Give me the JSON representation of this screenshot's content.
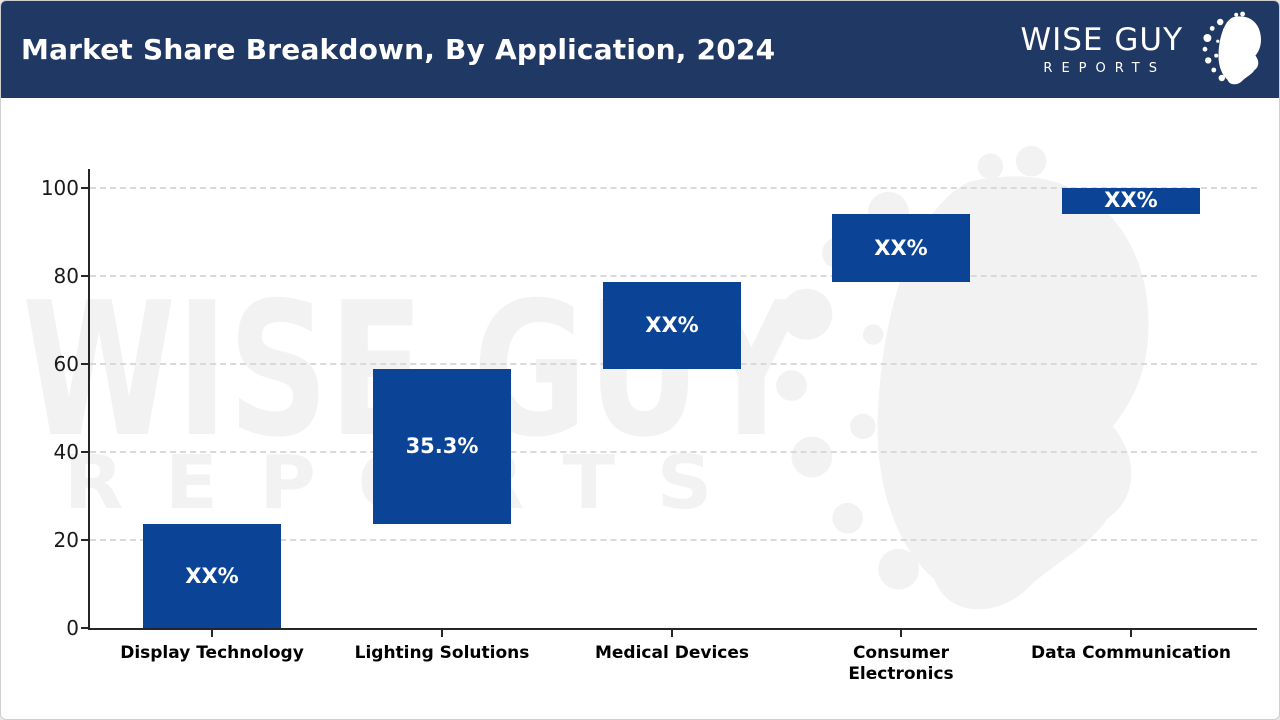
{
  "header": {
    "title": "Market Share Breakdown, By Application, 2024",
    "logo": {
      "name": "WISE GUY",
      "subtitle": "REPORTS"
    }
  },
  "watermark": {
    "line1": "WISE GUY",
    "line2": "REPORTS"
  },
  "chart_data": {
    "type": "bar",
    "subtype": "waterfall",
    "title": "Market Share Breakdown, By Application, 2024",
    "categories": [
      "Display Technology",
      "Lighting Solutions",
      "Medical Devices",
      "Consumer Electronics",
      "Data Communication"
    ],
    "category_label_lines": [
      [
        "Display Technology"
      ],
      [
        "Lighting Solutions"
      ],
      [
        "Medical Devices"
      ],
      [
        "Consumer",
        "Electronics"
      ],
      [
        "Data Communication"
      ]
    ],
    "bars": [
      {
        "category": "Display Technology",
        "start": 0,
        "end": 23.5,
        "label": "XX%"
      },
      {
        "category": "Lighting Solutions",
        "start": 23.5,
        "end": 58.8,
        "label": "35.3%"
      },
      {
        "category": "Medical Devices",
        "start": 58.8,
        "end": 78.5,
        "label": "XX%"
      },
      {
        "category": "Consumer Electronics",
        "start": 78.5,
        "end": 94,
        "label": "XX%"
      },
      {
        "category": "Data Communication",
        "start": 94,
        "end": 100,
        "label": "XX%"
      }
    ],
    "ylim": [
      0,
      100
    ],
    "yticks": [
      0,
      20,
      40,
      60,
      80,
      100
    ],
    "grid": "horizontal-dashed",
    "legend": "none",
    "colors": {
      "header_bg": "#203864",
      "bar": "#0b4496",
      "bar_label": "#ffffff",
      "grid": "#d9d9d9",
      "axis": "#262626",
      "tick_label": "#1a1a1a",
      "watermark": "#f2f2f2"
    }
  }
}
